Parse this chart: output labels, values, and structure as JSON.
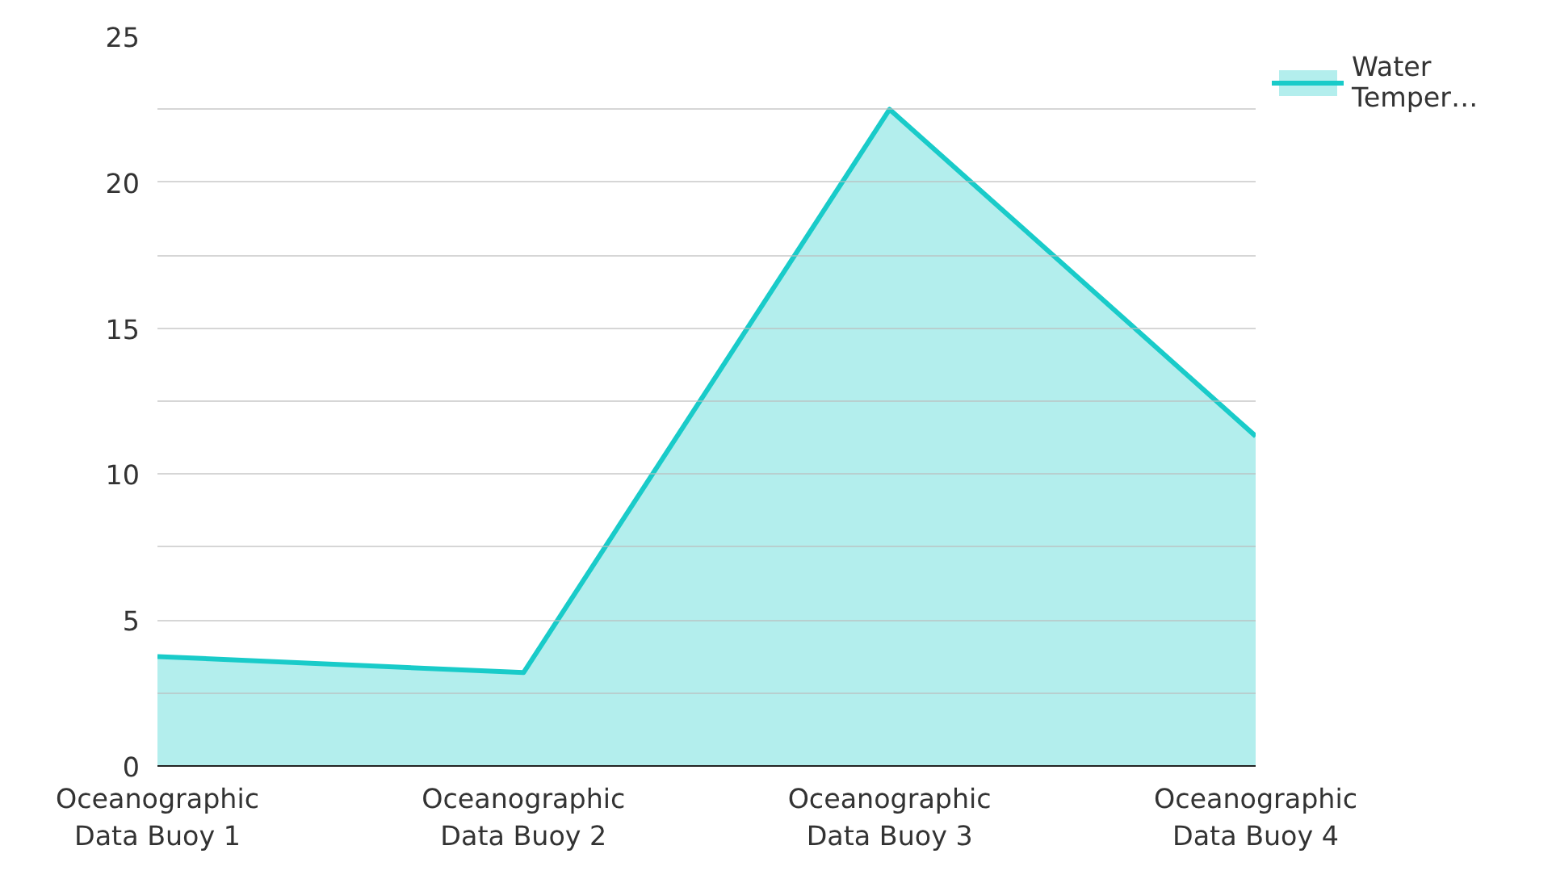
{
  "chart_data": {
    "type": "area",
    "categories": [
      "Oceanographic Data Buoy 1",
      "Oceanographic Data Buoy 2",
      "Oceanographic Data Buoy 3",
      "Oceanographic Data Buoy 4"
    ],
    "series": [
      {
        "name": "Water Temper…",
        "color": "#19cbc9",
        "values": [
          3.75,
          3.2,
          22.5,
          11.3
        ]
      }
    ],
    "ylim": [
      0,
      25
    ],
    "yticks": [
      0,
      {
        "value": 2.5,
        "label": null
      },
      5,
      {
        "value": 7.5,
        "label": null
      },
      10,
      {
        "value": 12.5,
        "label": null
      },
      15,
      {
        "value": 17.5,
        "label": null
      },
      20,
      {
        "value": 22.5,
        "label": null
      },
      25
    ],
    "grid": "y",
    "legend": "top right"
  }
}
